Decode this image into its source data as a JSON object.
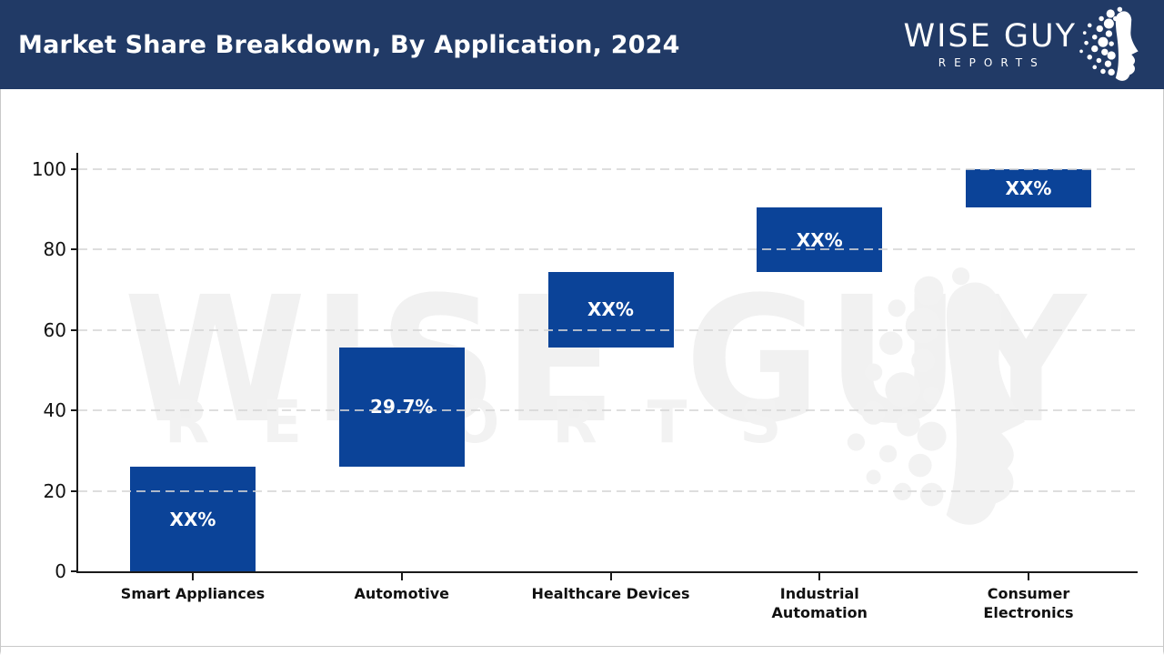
{
  "header": {
    "title": "Market Share Breakdown, By Application, 2024",
    "logo": {
      "wordmark": "WISE GUY",
      "tagline": "REPORTS"
    }
  },
  "watermark": {
    "line1": "WISE GUY",
    "line2": "REPORTS"
  },
  "chart_data": {
    "type": "bar",
    "variant": "waterfall",
    "title": "Market Share Breakdown, By Application, 2024",
    "categories": [
      "Smart Appliances",
      "Automotive",
      "Healthcare Devices",
      "Industrial Automation",
      "Consumer Electronics"
    ],
    "xtick_labels": [
      "Smart Appliances",
      "Automotive",
      "Healthcare Devices",
      "Industrial\nAutomation",
      "Consumer\nElectronics"
    ],
    "segments": [
      {
        "category": "Smart Appliances",
        "start": 0,
        "end": 26,
        "label": "XX%"
      },
      {
        "category": "Automotive",
        "start": 26,
        "end": 55.7,
        "label": "29.7%"
      },
      {
        "category": "Healthcare Devices",
        "start": 55.7,
        "end": 74.4,
        "label": "XX%"
      },
      {
        "category": "Industrial Automation",
        "start": 74.4,
        "end": 90.4,
        "label": "XX%"
      },
      {
        "category": "Consumer Electronics",
        "start": 90.4,
        "end": 100,
        "label": "XX%"
      }
    ],
    "ylim": [
      0,
      100
    ],
    "yticks": [
      0,
      20,
      40,
      60,
      80,
      100
    ],
    "xlabel": "",
    "ylabel": "",
    "grid": "horizontal-dashed",
    "legend_position": "none",
    "colors": {
      "bar": "#0b4398",
      "bar_label": "#ffffff",
      "grid": "#d6d6d6",
      "axis": "#1a1a1a",
      "header_bg": "#213a66",
      "watermark": "#f1f1f1"
    }
  }
}
